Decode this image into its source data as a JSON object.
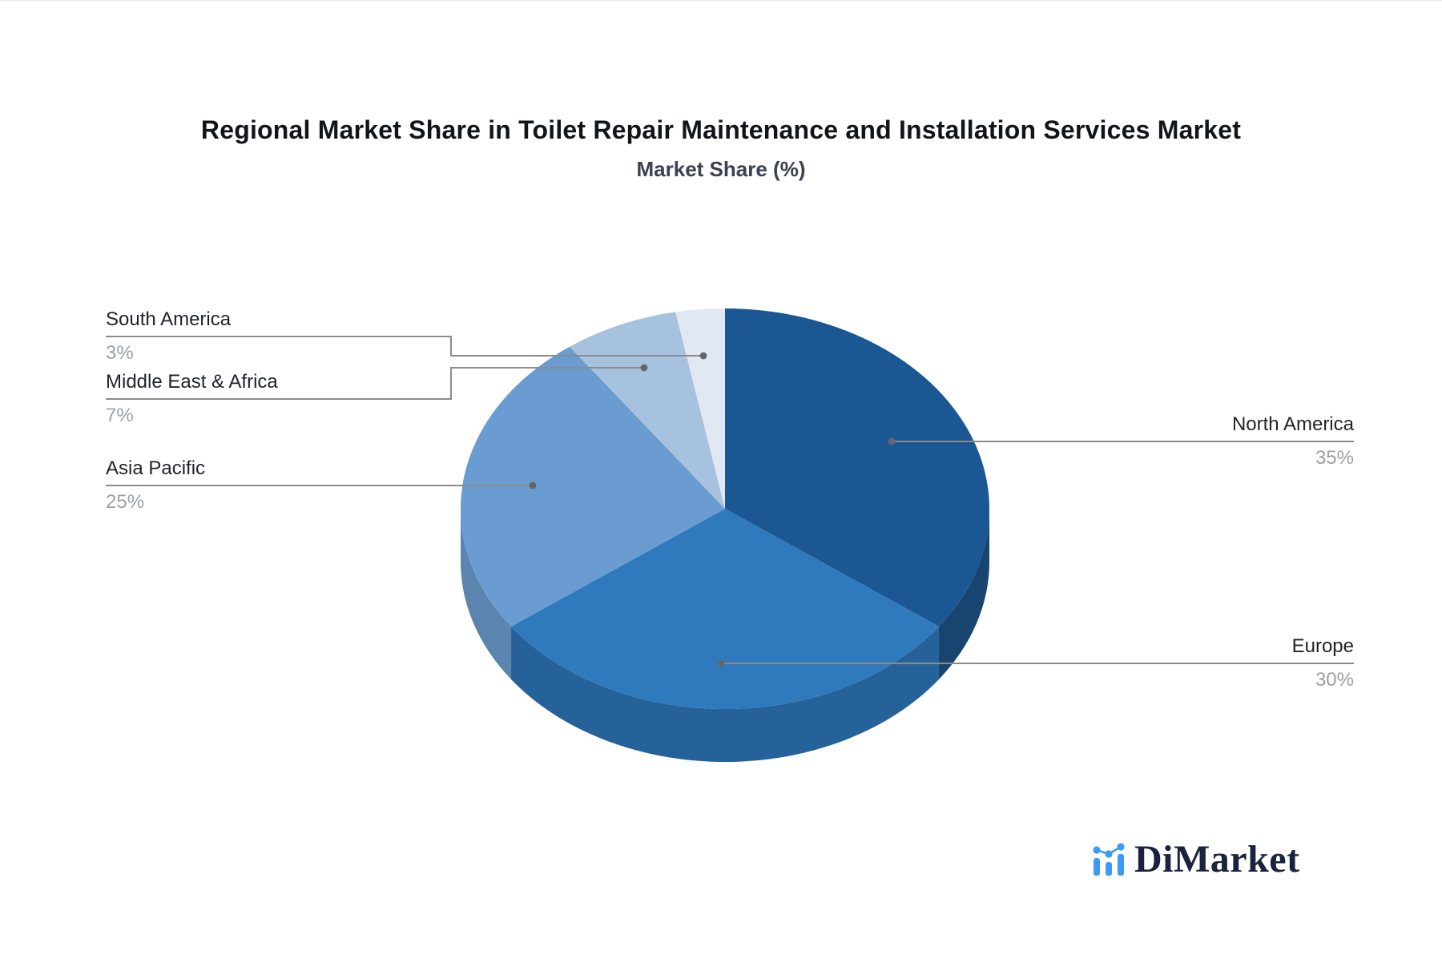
{
  "header": {
    "title": "Regional Market Share in Toilet Repair Maintenance and Installation Services Market",
    "subtitle": "Market Share (%)"
  },
  "chart_data": {
    "type": "pie",
    "style": "3d",
    "title": "Regional Market Share in Toilet Repair Maintenance and Installation Services Market",
    "value_label": "Market Share (%)",
    "unit": "%",
    "start_angle_deg": 0,
    "direction": "clockwise",
    "legend": false,
    "categories": [
      "North America",
      "Europe",
      "Asia Pacific",
      "Middle East & Africa",
      "South America"
    ],
    "values": [
      35,
      30,
      25,
      7,
      3
    ],
    "slices": [
      {
        "name": "North America",
        "value": 35,
        "pct_label": "35%",
        "color": "#1B5792",
        "side_color": "#17456F"
      },
      {
        "name": "Europe",
        "value": 30,
        "pct_label": "30%",
        "color": "#2F7ABD",
        "side_color": "#26629A"
      },
      {
        "name": "Asia Pacific",
        "value": 25,
        "pct_label": "25%",
        "color": "#6B9CD1",
        "side_color": "#5B84AE"
      },
      {
        "name": "Middle East & Africa",
        "value": 7,
        "pct_label": "7%",
        "color": "#A6C2DE",
        "side_color": "#8FA9C4"
      },
      {
        "name": "South America",
        "value": 3,
        "pct_label": "3%",
        "color": "#E1E8F1",
        "side_color": "#C4CEDA"
      }
    ],
    "connector_color": "#8b8b8b",
    "dot_color": "#63676b"
  },
  "branding": {
    "logo_text": "DiMarket",
    "logo_color": "#19233f",
    "icon_color": "#3D9BF5"
  }
}
